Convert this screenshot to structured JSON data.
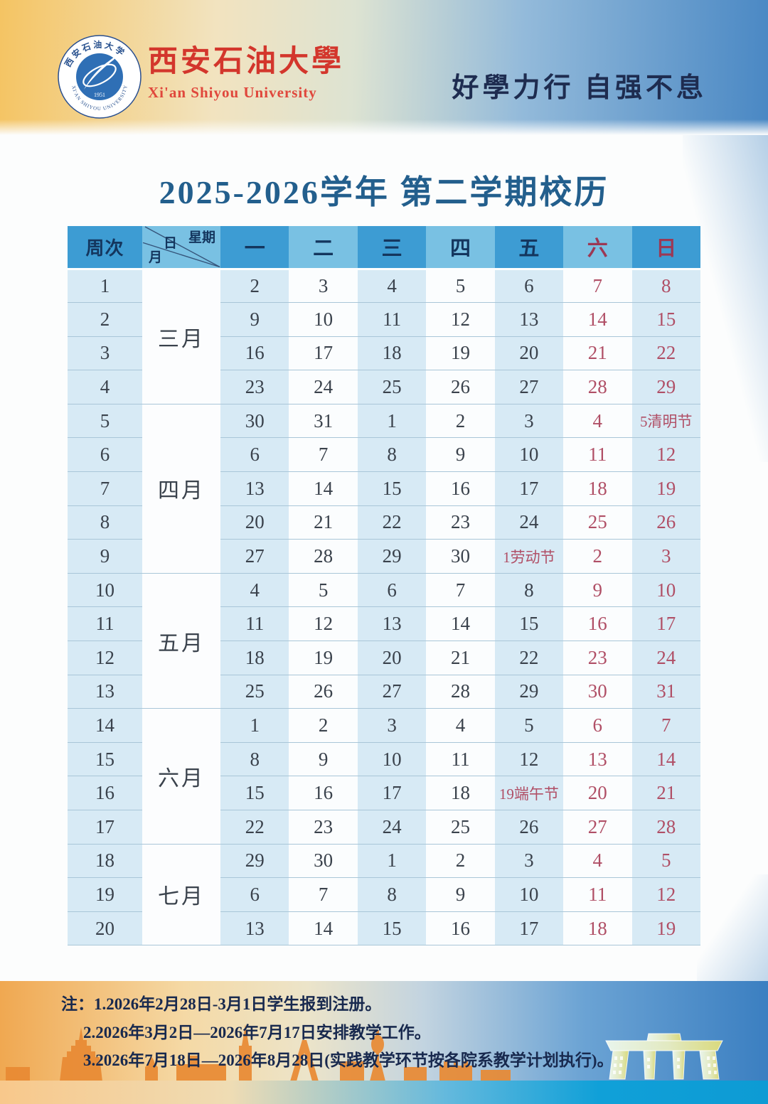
{
  "header": {
    "logo": {
      "ring_text_top": "西安石油大学",
      "ring_text_bottom": "XI'AN SHIYOU UNIVERSITY",
      "year": "1951"
    },
    "university_name_zh": "西安石油大學",
    "university_name_en": "Xi'an Shiyou University",
    "motto": "好學力行 自强不息"
  },
  "page_title": "2025-2026学年 第二学期校历",
  "calendar": {
    "corner": {
      "week": "周次",
      "weekday": "星期",
      "day": "日",
      "month": "月"
    },
    "weekdays": [
      "一",
      "二",
      "三",
      "四",
      "五",
      "六",
      "日"
    ],
    "months": [
      {
        "name": "三月",
        "span": 4
      },
      {
        "name": "四月",
        "span": 5
      },
      {
        "name": "五月",
        "span": 4
      },
      {
        "name": "六月",
        "span": 4
      },
      {
        "name": "七月",
        "span": 3
      }
    ],
    "weeks": [
      {
        "n": "1",
        "days": [
          "2",
          "3",
          "4",
          "5",
          "6",
          "7",
          "8"
        ]
      },
      {
        "n": "2",
        "days": [
          "9",
          "10",
          "11",
          "12",
          "13",
          "14",
          "15"
        ]
      },
      {
        "n": "3",
        "days": [
          "16",
          "17",
          "18",
          "19",
          "20",
          "21",
          "22"
        ]
      },
      {
        "n": "4",
        "days": [
          "23",
          "24",
          "25",
          "26",
          "27",
          "28",
          "29"
        ]
      },
      {
        "n": "5",
        "days": [
          "30",
          "31",
          "1",
          "2",
          "3",
          "4",
          "5清明节"
        ]
      },
      {
        "n": "6",
        "days": [
          "6",
          "7",
          "8",
          "9",
          "10",
          "11",
          "12"
        ]
      },
      {
        "n": "7",
        "days": [
          "13",
          "14",
          "15",
          "16",
          "17",
          "18",
          "19"
        ]
      },
      {
        "n": "8",
        "days": [
          "20",
          "21",
          "22",
          "23",
          "24",
          "25",
          "26"
        ]
      },
      {
        "n": "9",
        "days": [
          "27",
          "28",
          "29",
          "30",
          "1劳动节",
          "2",
          "3"
        ],
        "holiday_cols": [
          4
        ]
      },
      {
        "n": "10",
        "days": [
          "4",
          "5",
          "6",
          "7",
          "8",
          "9",
          "10"
        ]
      },
      {
        "n": "11",
        "days": [
          "11",
          "12",
          "13",
          "14",
          "15",
          "16",
          "17"
        ]
      },
      {
        "n": "12",
        "days": [
          "18",
          "19",
          "20",
          "21",
          "22",
          "23",
          "24"
        ]
      },
      {
        "n": "13",
        "days": [
          "25",
          "26",
          "27",
          "28",
          "29",
          "30",
          "31"
        ]
      },
      {
        "n": "14",
        "days": [
          "1",
          "2",
          "3",
          "4",
          "5",
          "6",
          "7"
        ]
      },
      {
        "n": "15",
        "days": [
          "8",
          "9",
          "10",
          "11",
          "12",
          "13",
          "14"
        ]
      },
      {
        "n": "16",
        "days": [
          "15",
          "16",
          "17",
          "18",
          "19端午节",
          "20",
          "21"
        ],
        "holiday_cols": [
          4
        ]
      },
      {
        "n": "17",
        "days": [
          "22",
          "23",
          "24",
          "25",
          "26",
          "27",
          "28"
        ]
      },
      {
        "n": "18",
        "days": [
          "29",
          "30",
          "1",
          "2",
          "3",
          "4",
          "5"
        ]
      },
      {
        "n": "19",
        "days": [
          "6",
          "7",
          "8",
          "9",
          "10",
          "11",
          "12"
        ]
      },
      {
        "n": "20",
        "days": [
          "13",
          "14",
          "15",
          "16",
          "17",
          "18",
          "19"
        ]
      }
    ]
  },
  "notes": {
    "lines": [
      "注：1.2026年2月28日-3月1日学生报到注册。",
      "2.2026年3月2日—2026年7月17日安排教学工作。",
      "3.2026年7月18日—2026年8月28日(实践教学环节按各院系教学计划执行)。"
    ]
  },
  "colors": {
    "header_cell_dark": "#3d9cd3",
    "header_cell_light": "#79c1e3",
    "cell_shaded": "#d7eaf5",
    "cell_plain": "#fbfdfe",
    "row_line": "#a9c6d8",
    "date_text": "#3a424c",
    "weekend_red": "#b04f66",
    "header_text": "#14365e",
    "weekend_header_red": "#9c3854",
    "title_blue": "#235f8d",
    "notes_navy": "#18294e",
    "brand_red": "#d3362c",
    "motto_navy": "#1e2c50"
  }
}
